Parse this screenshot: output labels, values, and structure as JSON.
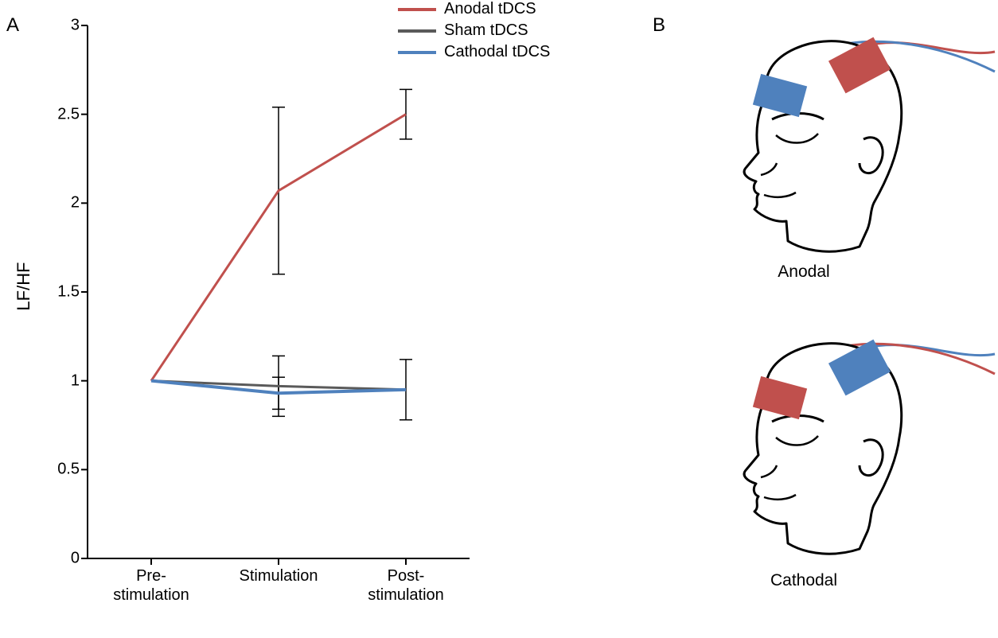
{
  "panels": {
    "A": {
      "label": "A"
    },
    "B": {
      "label": "B"
    }
  },
  "chart": {
    "type": "line",
    "ylabel": "LF/HF",
    "x_categories": [
      "Pre-stimulation",
      "Stimulation",
      "Post-stimulation"
    ],
    "x_category_labels_2line": [
      [
        "Pre-",
        "stimulation"
      ],
      [
        "Stimulation",
        ""
      ],
      [
        "Post-",
        "stimulation"
      ]
    ],
    "ylim": [
      0,
      3
    ],
    "yticks": [
      0,
      0.5,
      1,
      1.5,
      2,
      2.5,
      3
    ],
    "series": [
      {
        "name": "Anodal tDCS",
        "color": "#c0504d",
        "width": 3,
        "values": [
          1.0,
          2.07,
          2.5
        ],
        "err": [
          0,
          0.47,
          0.14
        ]
      },
      {
        "name": "Sham tDCS",
        "color": "#5a5a5a",
        "width": 3,
        "values": [
          1.0,
          0.97,
          0.95
        ],
        "err": [
          0,
          0.17,
          0.17
        ]
      },
      {
        "name": "Cathodal tDCS",
        "color": "#4f81bd",
        "width": 4,
        "values": [
          1.0,
          0.93,
          0.95
        ],
        "err": [
          0,
          0.09,
          0.0
        ]
      }
    ],
    "axis_color": "#000000",
    "background_color": "#ffffff",
    "label_fontsize": 22,
    "tick_fontsize": 20,
    "errorbar_color": "#000000",
    "errorbar_width": 1.5,
    "errorbar_capwidth": 16
  },
  "legend": {
    "items": [
      {
        "label": "Anodal tDCS",
        "color": "#c0504d"
      },
      {
        "label": "Sham tDCS",
        "color": "#5a5a5a"
      },
      {
        "label": "Cathodal tDCS",
        "color": "#4f81bd"
      }
    ],
    "fontsize": 20
  },
  "heads": {
    "anodal": {
      "label": "Anodal",
      "front_color": "#4f81bd",
      "top_color": "#c0504d",
      "front_wire": "#4f81bd",
      "top_wire": "#c0504d"
    },
    "cathodal": {
      "label": "Cathodal",
      "front_color": "#c0504d",
      "top_color": "#4f81bd",
      "front_wire": "#c0504d",
      "top_wire": "#4f81bd"
    },
    "outline_color": "#000000",
    "outline_width": 3,
    "fontsize": 21
  }
}
